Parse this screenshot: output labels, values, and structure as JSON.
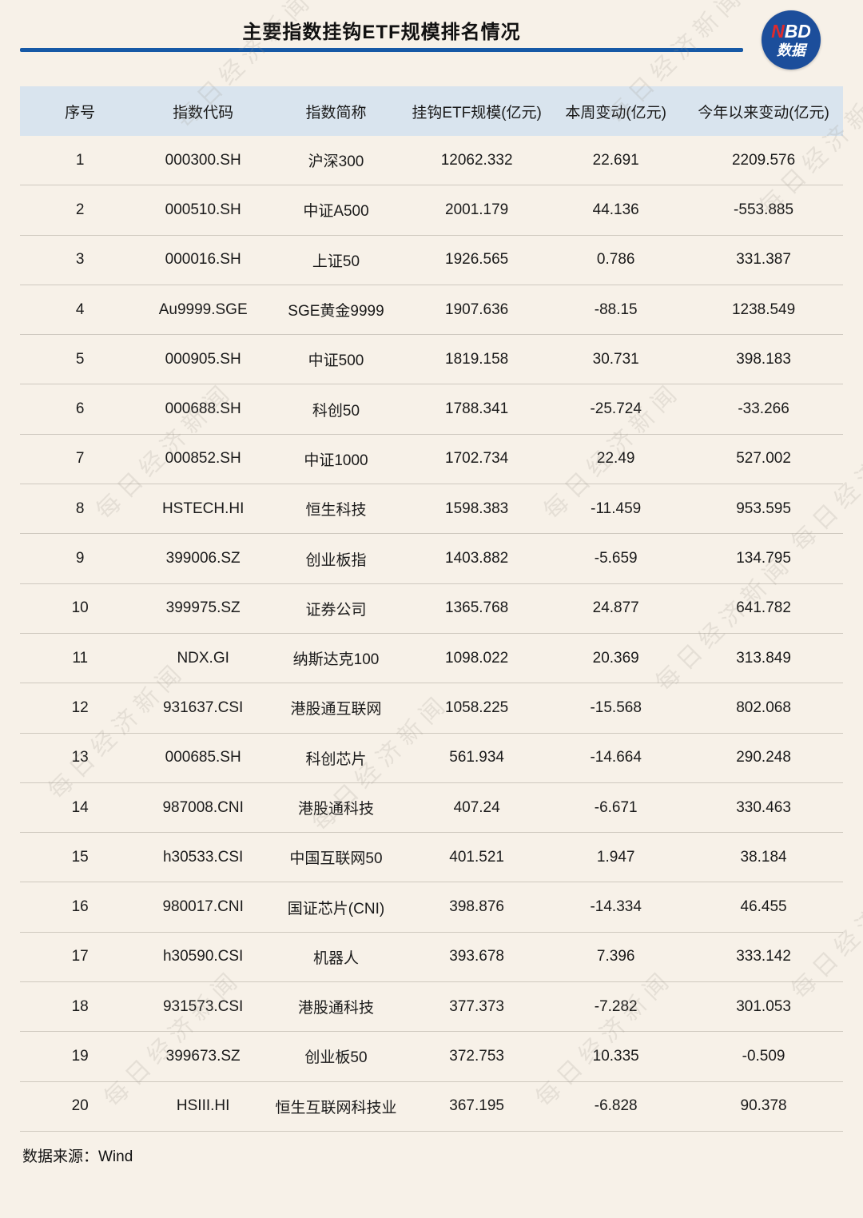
{
  "header": {
    "logo": {
      "n": "N",
      "bd": "BD",
      "sub": "数据"
    }
  },
  "watermark": {
    "text": "每日经济新闻"
  },
  "chart_data": {
    "type": "table",
    "title": "主要指数挂钩ETF规模排名情况",
    "columns": [
      "序号",
      "指数代码",
      "指数简称",
      "挂钩ETF规模(亿元)",
      "本周变动(亿元)",
      "今年以来变动(亿元)"
    ],
    "rows": [
      [
        "1",
        "000300.SH",
        "沪深300",
        "12062.332",
        "22.691",
        "2209.576"
      ],
      [
        "2",
        "000510.SH",
        "中证A500",
        "2001.179",
        "44.136",
        "-553.885"
      ],
      [
        "3",
        "000016.SH",
        "上证50",
        "1926.565",
        "0.786",
        "331.387"
      ],
      [
        "4",
        "Au9999.SGE",
        "SGE黄金9999",
        "1907.636",
        "-88.15",
        "1238.549"
      ],
      [
        "5",
        "000905.SH",
        "中证500",
        "1819.158",
        "30.731",
        "398.183"
      ],
      [
        "6",
        "000688.SH",
        "科创50",
        "1788.341",
        "-25.724",
        "-33.266"
      ],
      [
        "7",
        "000852.SH",
        "中证1000",
        "1702.734",
        "22.49",
        "527.002"
      ],
      [
        "8",
        "HSTECH.HI",
        "恒生科技",
        "1598.383",
        "-11.459",
        "953.595"
      ],
      [
        "9",
        "399006.SZ",
        "创业板指",
        "1403.882",
        "-5.659",
        "134.795"
      ],
      [
        "10",
        "399975.SZ",
        "证券公司",
        "1365.768",
        "24.877",
        "641.782"
      ],
      [
        "11",
        "NDX.GI",
        "纳斯达克100",
        "1098.022",
        "20.369",
        "313.849"
      ],
      [
        "12",
        "931637.CSI",
        "港股通互联网",
        "1058.225",
        "-15.568",
        "802.068"
      ],
      [
        "13",
        "000685.SH",
        "科创芯片",
        "561.934",
        "-14.664",
        "290.248"
      ],
      [
        "14",
        "987008.CNI",
        "港股通科技",
        "407.24",
        "-6.671",
        "330.463"
      ],
      [
        "15",
        "h30533.CSI",
        "中国互联网50",
        "401.521",
        "1.947",
        "38.184"
      ],
      [
        "16",
        "980017.CNI",
        "国证芯片(CNI)",
        "398.876",
        "-14.334",
        "46.455"
      ],
      [
        "17",
        "h30590.CSI",
        "机器人",
        "393.678",
        "7.396",
        "333.142"
      ],
      [
        "18",
        "931573.CSI",
        "港股通科技",
        "377.373",
        "-7.282",
        "301.053"
      ],
      [
        "19",
        "399673.SZ",
        "创业板50",
        "372.753",
        "10.335",
        "-0.509"
      ],
      [
        "20",
        "HSIII.HI",
        "恒生互联网科技业",
        "367.195",
        "-6.828",
        "90.378"
      ]
    ],
    "source": "数据来源：Wind"
  },
  "colors": {
    "accent_blue": "#1659a6",
    "logo_blue": "#1c4e9b",
    "logo_red": "#e02a2c",
    "header_row_bg": "#d9e4ee",
    "page_bg": "#f7f1e8",
    "watermark_gray": "#9a948a"
  }
}
